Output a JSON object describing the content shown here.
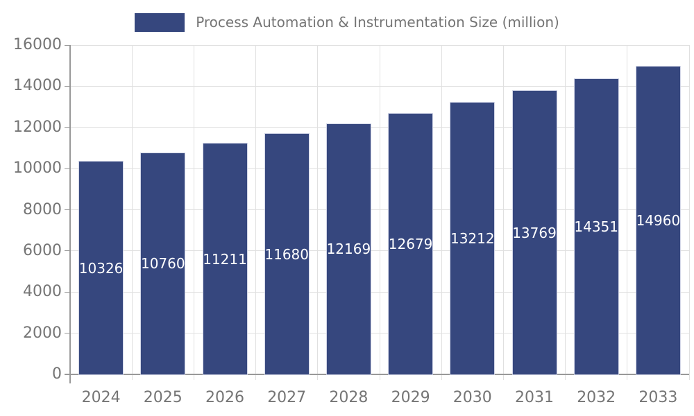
{
  "chart_data": {
    "type": "bar",
    "title": "Process Automation & Instrumentation Size (million)",
    "categories": [
      "2024",
      "2025",
      "2026",
      "2027",
      "2028",
      "2029",
      "2030",
      "2031",
      "2032",
      "2033"
    ],
    "values": [
      10326,
      10760,
      11211,
      11680,
      12169,
      12679,
      13212,
      13769,
      14351,
      14960
    ],
    "xlabel": "",
    "ylabel": "",
    "ylim": [
      0,
      16000
    ],
    "yticks": [
      0,
      2000,
      4000,
      6000,
      8000,
      10000,
      12000,
      14000,
      16000
    ],
    "grid": true,
    "legend_position": "top",
    "value_labels": "inside-center",
    "colors": {
      "bar": "#36477e",
      "bar_label": "#ffffff",
      "axis_text": "#757575",
      "grid_line": "#e0e0e0",
      "axis_line": "#999999"
    }
  }
}
